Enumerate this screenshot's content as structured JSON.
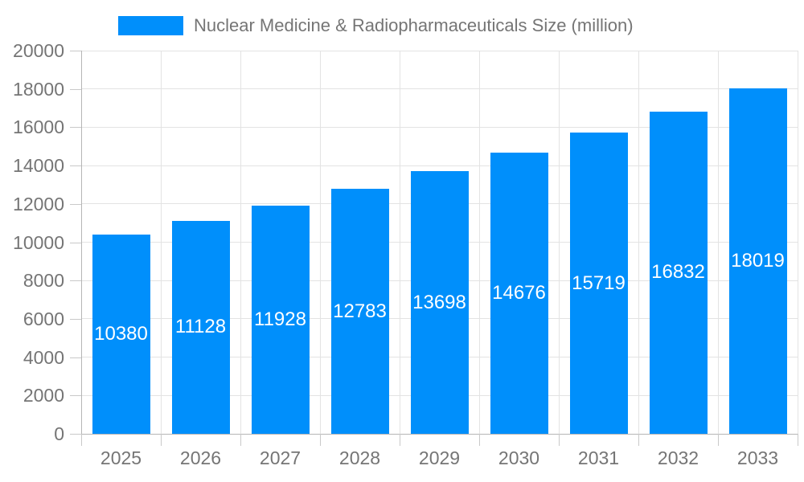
{
  "legend": {
    "label": "Nuclear Medicine & Radiopharmaceuticals Size (million)"
  },
  "colors": {
    "bar": "#008ffb",
    "axis_text": "#757575",
    "grid": "#e3e3e3",
    "axis_line": "#b6b6b6",
    "tick": "#c9c9c9",
    "value_label": "#ffffff",
    "background": "#ffffff"
  },
  "chart_data": {
    "type": "bar",
    "title": "Nuclear Medicine & Radiopharmaceuticals Size (million)",
    "categories": [
      "2025",
      "2026",
      "2027",
      "2028",
      "2029",
      "2030",
      "2031",
      "2032",
      "2033"
    ],
    "values": [
      10380,
      11128,
      11928,
      12783,
      13698,
      14676,
      15719,
      16832,
      18019
    ],
    "series": [
      {
        "name": "Nuclear Medicine & Radiopharmaceuticals Size (million)",
        "values": [
          10380,
          11128,
          11928,
          12783,
          13698,
          14676,
          15719,
          16832,
          18019
        ]
      }
    ],
    "xlabel": "",
    "ylabel": "",
    "ylim": [
      0,
      20000
    ],
    "ytick_step": 2000,
    "yticks": [
      0,
      2000,
      4000,
      6000,
      8000,
      10000,
      12000,
      14000,
      16000,
      18000,
      20000
    ],
    "grid": true,
    "legend_position": "top",
    "bar_labels_visible": true,
    "bar_label_placement": "inside-center"
  }
}
